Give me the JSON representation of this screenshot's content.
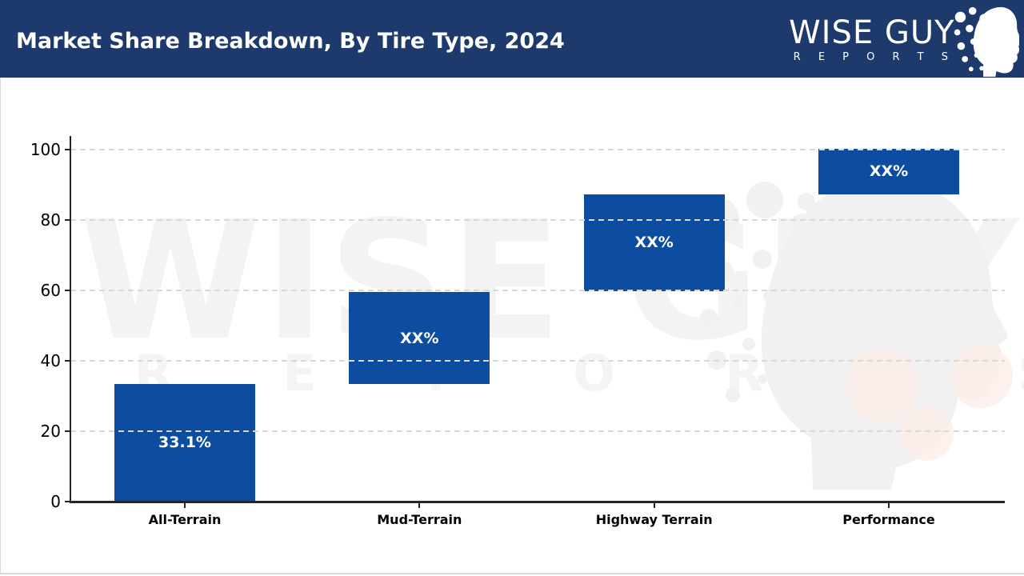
{
  "header": {
    "title": "Market Share Breakdown, By Tire Type, 2024",
    "bg_color": "#1e3a6d",
    "logo": {
      "line1": "WISE GUY",
      "line2": "R E P O R T S"
    }
  },
  "watermark": {
    "line1": "WISE GUY",
    "line2": "R E P O R T S"
  },
  "chart_data": {
    "type": "bar",
    "variant": "waterfall",
    "title": "Market Share Breakdown, By Tire Type, 2024",
    "categories": [
      "All-Terrain",
      "Mud-Terrain",
      "Highway Terrain",
      "Performance"
    ],
    "segments": [
      {
        "category": "All-Terrain",
        "start": 0,
        "end": 33.1,
        "label": "33.1%"
      },
      {
        "category": "Mud-Terrain",
        "start": 33.1,
        "end": 59.4,
        "label": "XX%"
      },
      {
        "category": "Highway Terrain",
        "start": 59.6,
        "end": 87.0,
        "label": "XX%"
      },
      {
        "category": "Performance",
        "start": 87.1,
        "end": 100.0,
        "label": "XX%"
      }
    ],
    "ylim": [
      0,
      100
    ],
    "yticks": [
      0,
      20,
      40,
      60,
      80,
      100
    ],
    "xlabel": "",
    "ylabel": "",
    "grid": "horizontal-dashed",
    "legend": "none",
    "bar_color": "#0c4da2",
    "bar_label_color": "#ffffff",
    "gridline_color": "#d9d9d9",
    "axis_color": "#262626"
  }
}
